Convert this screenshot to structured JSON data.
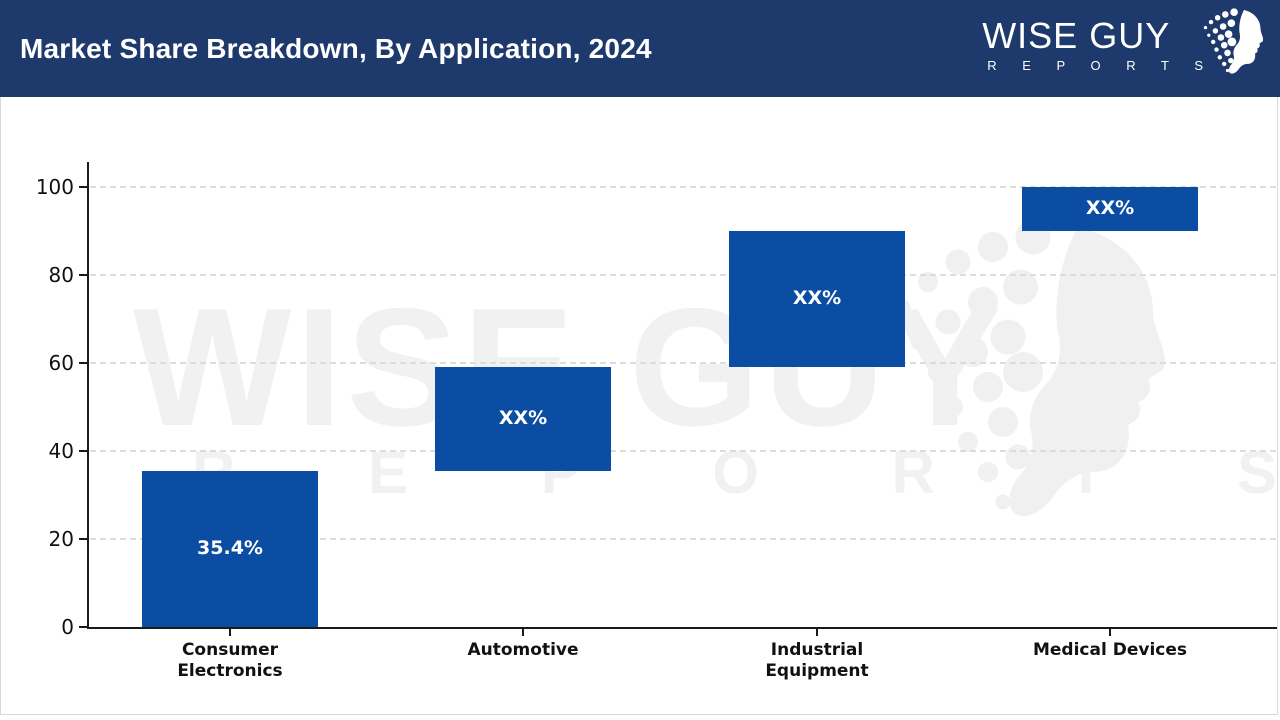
{
  "header": {
    "title": "Market Share Breakdown, By Application, 2024",
    "logo": {
      "line1": "WISE GUY",
      "line2": "R E P O R T S",
      "icon": "dotted-head-profile"
    }
  },
  "watermark": {
    "line1": "WISE GUY",
    "line2": "R E P O R T S",
    "icon": "dotted-head-profile"
  },
  "colors": {
    "header_bg": "#1e3a6c",
    "bar_fill": "#0b4da2",
    "bar_label": "#ffffff",
    "axis": "#1a1a1a",
    "gridline": "#dcdcdc",
    "tick_label": "#111111",
    "watermark": "#f1f1f1",
    "frame_border": "#d9d9d9"
  },
  "chart_data": {
    "type": "bar",
    "subtype": "floating-waterfall",
    "title": "Market Share Breakdown, By Application, 2024",
    "xlabel": "",
    "ylabel": "",
    "ylim": [
      0,
      100
    ],
    "yticks": [
      0,
      20,
      40,
      60,
      80,
      100
    ],
    "grid": "horizontal-dashed",
    "legend": "none",
    "categories": [
      "Consumer Electronics",
      "Automotive",
      "Industrial Equipment",
      "Medical Devices"
    ],
    "segments": [
      {
        "category": "Consumer Electronics",
        "label_lines": [
          "Consumer",
          "Electronics"
        ],
        "start": 0,
        "end": 35.4,
        "value_label": "35.4%"
      },
      {
        "category": "Automotive",
        "label_lines": [
          "Automotive"
        ],
        "start": 35.4,
        "end": 59,
        "value_label": "XX%"
      },
      {
        "category": "Industrial Equipment",
        "label_lines": [
          "Industrial",
          "Equipment"
        ],
        "start": 59,
        "end": 90,
        "value_label": "XX%"
      },
      {
        "category": "Medical Devices",
        "label_lines": [
          "Medical Devices"
        ],
        "start": 90,
        "end": 100,
        "value_label": "XX%"
      }
    ]
  }
}
